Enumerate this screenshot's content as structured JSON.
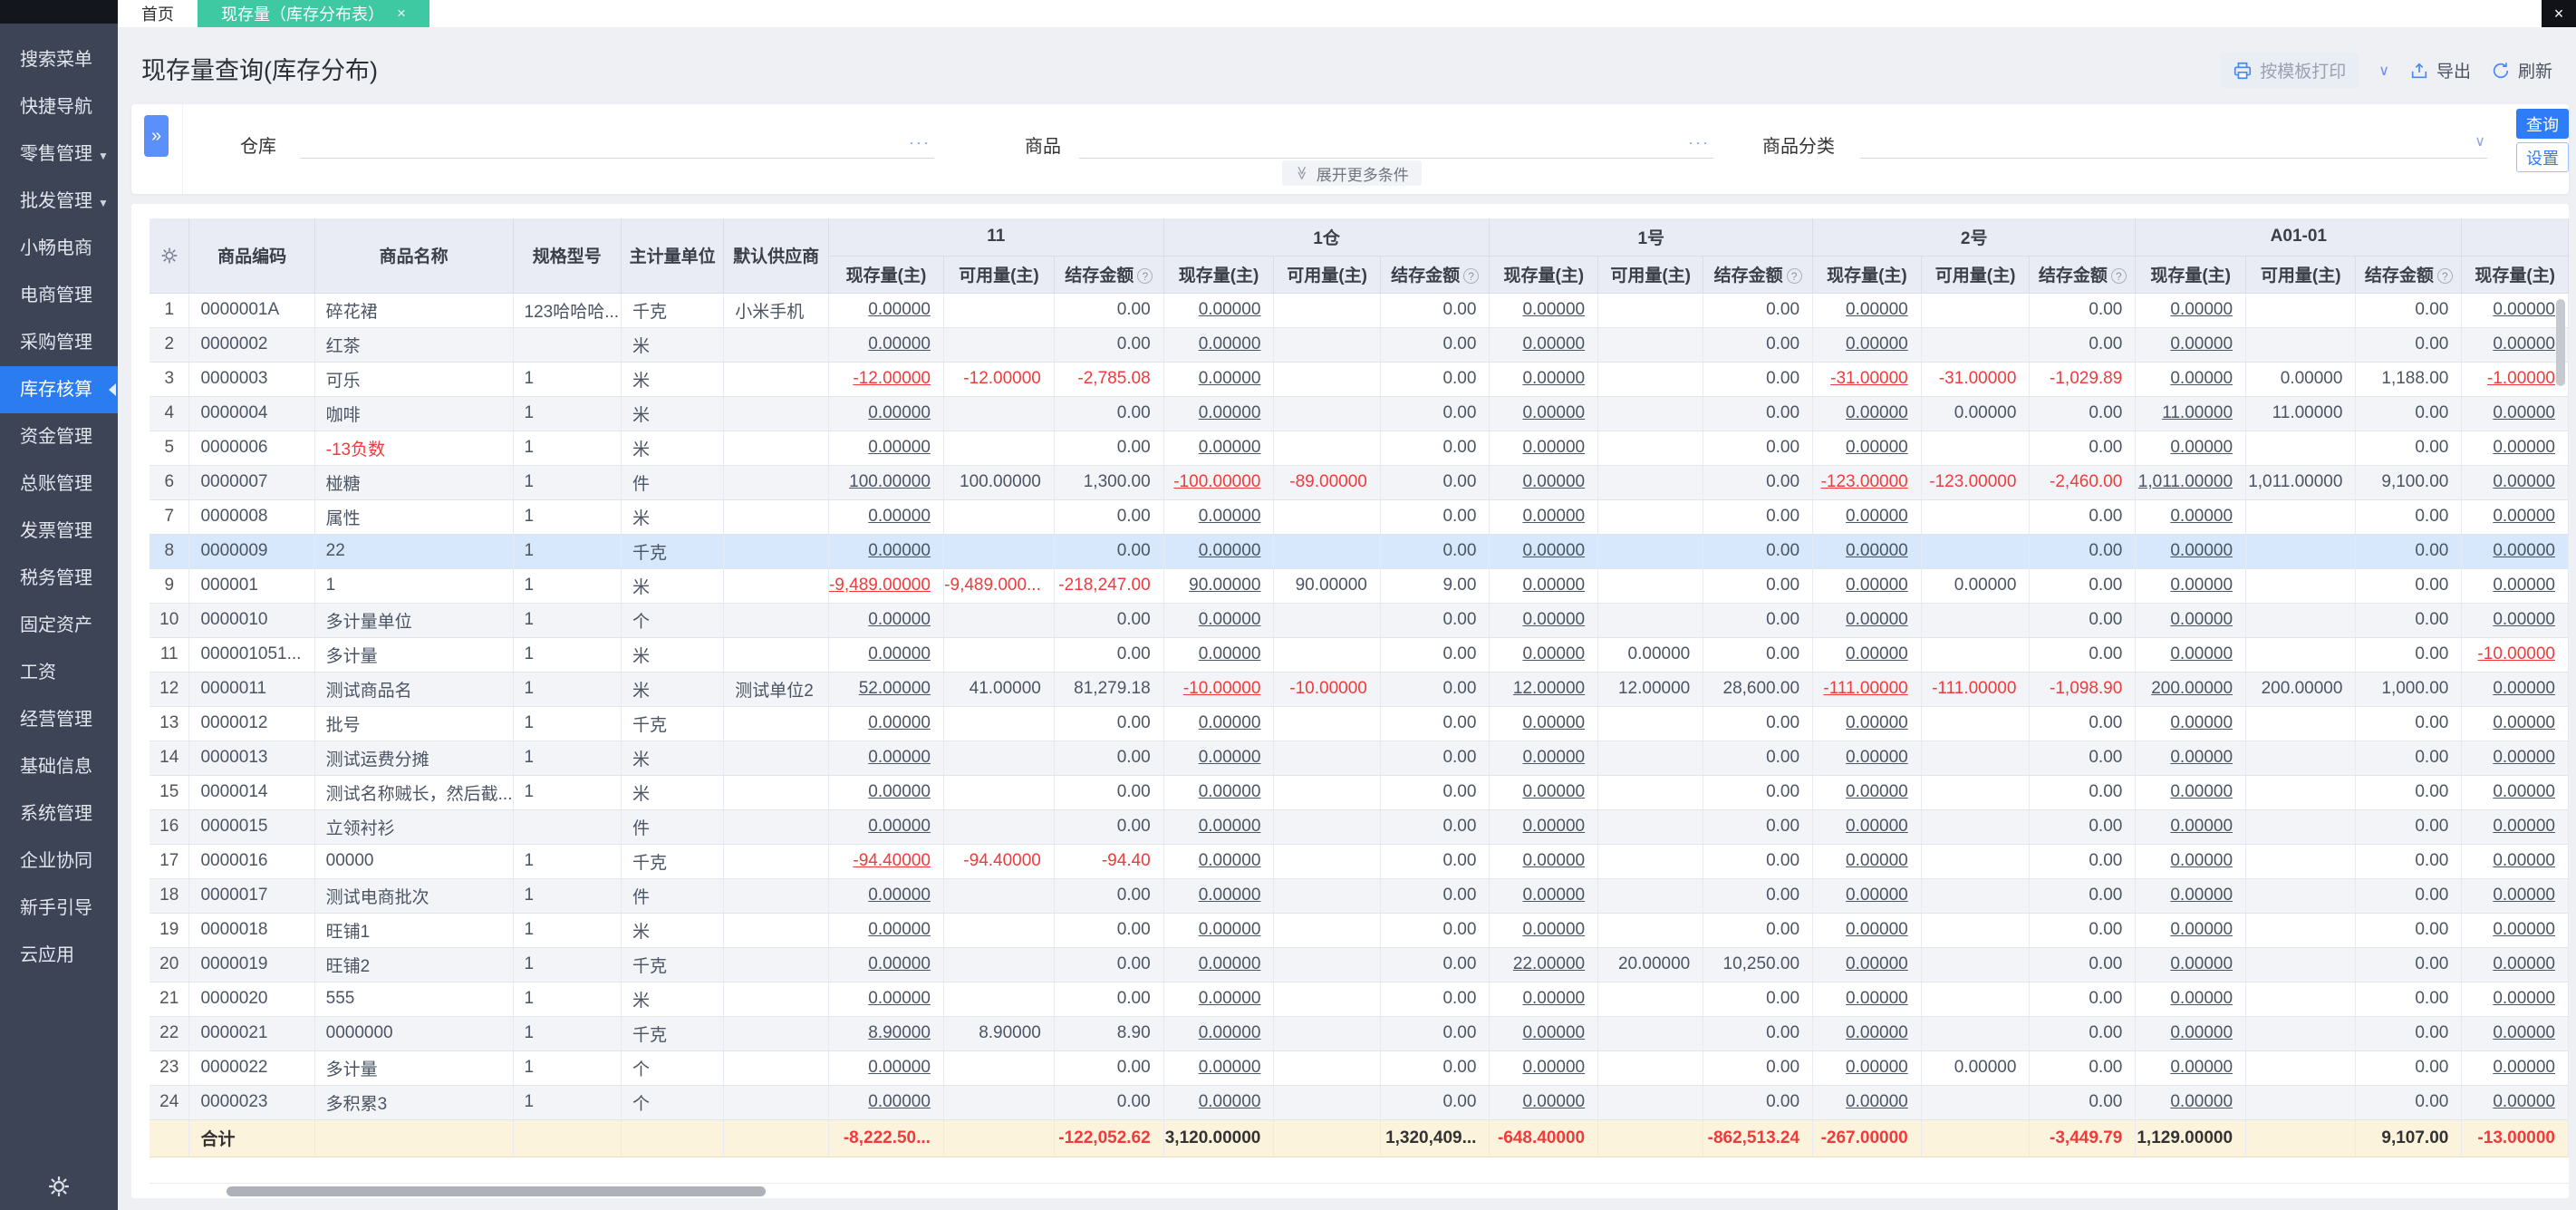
{
  "window": {
    "close_icon": "×"
  },
  "tabs": [
    {
      "label": "首页",
      "active": false,
      "closable": false
    },
    {
      "label": "现存量（库存分布表）",
      "active": true,
      "closable": true
    }
  ],
  "sidebar": {
    "items": [
      {
        "label": "搜索菜单"
      },
      {
        "label": "快捷导航"
      },
      {
        "label": "零售管理",
        "dropdown": true
      },
      {
        "label": "批发管理",
        "dropdown": true
      },
      {
        "label": "小畅电商"
      },
      {
        "label": "电商管理"
      },
      {
        "label": "采购管理"
      },
      {
        "label": "库存核算",
        "active": true
      },
      {
        "label": "资金管理"
      },
      {
        "label": "总账管理"
      },
      {
        "label": "发票管理"
      },
      {
        "label": "税务管理"
      },
      {
        "label": "固定资产"
      },
      {
        "label": "工资"
      },
      {
        "label": "经营管理"
      },
      {
        "label": "基础信息"
      },
      {
        "label": "系统管理"
      },
      {
        "label": "企业协同"
      },
      {
        "label": "新手引导"
      },
      {
        "label": "云应用"
      }
    ]
  },
  "page": {
    "title": "现存量查询(库存分布)"
  },
  "toolbar": {
    "print_label": "按模板打印",
    "export_label": "导出",
    "refresh_label": "刷新"
  },
  "filters": {
    "collapse_icon": "»",
    "warehouse_label": "仓库",
    "product_label": "商品",
    "category_label": "商品分类",
    "ellipsis_icon": "···",
    "chevron_icon": "∨",
    "expand_label": "展开更多条件",
    "search_label": "查询",
    "settings_label": "设置"
  },
  "colors": {
    "accent_blue": "#2e7cf6",
    "tab_green": "#3ec9a2",
    "negative_red": "#f03b3c",
    "sidebar_bg": "#3d4456",
    "selected_row": "#d7e8fc",
    "total_row_bg": "#fcf3dd"
  },
  "table": {
    "fixed_headers": [
      "商品编码",
      "商品名称",
      "规格型号",
      "主计量单位",
      "默认供应商"
    ],
    "group_headers": [
      "11",
      "1仓",
      "1号",
      "2号",
      "A01-01"
    ],
    "sub_headers": [
      "现存量(主)",
      "可用量(主)",
      "结存金额"
    ],
    "extra_sub_header": "现存量(主)",
    "help_icon": "?",
    "total_label": "合计",
    "rows": [
      {
        "code": "0000001A",
        "name": "碎花裙",
        "spec": "123哈哈哈...",
        "unit": "千克",
        "supplier": "小米手机",
        "cells": [
          "0.00000",
          "",
          "0.00",
          "0.00000",
          "",
          "0.00",
          "0.00000",
          "",
          "0.00",
          "0.00000",
          "",
          "0.00",
          "0.00000",
          "",
          "0.00",
          "0.00000"
        ]
      },
      {
        "code": "0000002",
        "name": "红茶",
        "spec": "",
        "unit": "米",
        "supplier": "",
        "cells": [
          "0.00000",
          "",
          "0.00",
          "0.00000",
          "",
          "0.00",
          "0.00000",
          "",
          "0.00",
          "0.00000",
          "",
          "0.00",
          "0.00000",
          "",
          "0.00",
          "0.00000"
        ]
      },
      {
        "code": "0000003",
        "name": "可乐",
        "spec": "1",
        "unit": "米",
        "supplier": "",
        "cells": [
          "-12.00000",
          "-12.00000",
          "-2,785.08",
          "0.00000",
          "",
          "0.00",
          "0.00000",
          "",
          "0.00",
          "-31.00000",
          "-31.00000",
          "-1,029.89",
          "0.00000",
          "0.00000",
          "1,188.00",
          "-1.00000"
        ]
      },
      {
        "code": "0000004",
        "name": "咖啡",
        "spec": "1",
        "unit": "米",
        "supplier": "",
        "cells": [
          "0.00000",
          "",
          "0.00",
          "0.00000",
          "",
          "0.00",
          "0.00000",
          "",
          "0.00",
          "0.00000",
          "0.00000",
          "0.00",
          "11.00000",
          "11.00000",
          "0.00",
          "0.00000"
        ]
      },
      {
        "code": "0000006",
        "name": "-13负数",
        "name_red": true,
        "spec": "1",
        "unit": "米",
        "supplier": "",
        "cells": [
          "0.00000",
          "",
          "0.00",
          "0.00000",
          "",
          "0.00",
          "0.00000",
          "",
          "0.00",
          "0.00000",
          "",
          "0.00",
          "0.00000",
          "",
          "0.00",
          "0.00000"
        ]
      },
      {
        "code": "0000007",
        "name": "椪糖",
        "spec": "1",
        "unit": "件",
        "supplier": "",
        "cells": [
          "100.00000",
          "100.00000",
          "1,300.00",
          "-100.00000",
          "-89.00000",
          "0.00",
          "0.00000",
          "",
          "0.00",
          "-123.00000",
          "-123.00000",
          "-2,460.00",
          "1,011.00000",
          "1,011.00000",
          "9,100.00",
          "0.00000"
        ]
      },
      {
        "code": "0000008",
        "name": "属性",
        "spec": "1",
        "unit": "米",
        "supplier": "",
        "cells": [
          "0.00000",
          "",
          "0.00",
          "0.00000",
          "",
          "0.00",
          "0.00000",
          "",
          "0.00",
          "0.00000",
          "",
          "0.00",
          "0.00000",
          "",
          "0.00",
          "0.00000"
        ]
      },
      {
        "code": "0000009",
        "name": "22",
        "spec": "1",
        "unit": "千克",
        "supplier": "",
        "selected": true,
        "cells": [
          "0.00000",
          "",
          "0.00",
          "0.00000",
          "",
          "0.00",
          "0.00000",
          "",
          "0.00",
          "0.00000",
          "",
          "0.00",
          "0.00000",
          "",
          "0.00",
          "0.00000"
        ]
      },
      {
        "code": "000001",
        "name": "1",
        "spec": "1",
        "unit": "米",
        "supplier": "",
        "cells": [
          "-9,489.00000",
          "-9,489.000...",
          "-218,247.00",
          "90.00000",
          "90.00000",
          "9.00",
          "0.00000",
          "",
          "0.00",
          "0.00000",
          "0.00000",
          "0.00",
          "0.00000",
          "",
          "0.00",
          "0.00000"
        ]
      },
      {
        "code": "0000010",
        "name": "多计量单位",
        "spec": "1",
        "unit": "个",
        "supplier": "",
        "cells": [
          "0.00000",
          "",
          "0.00",
          "0.00000",
          "",
          "0.00",
          "0.00000",
          "",
          "0.00",
          "0.00000",
          "",
          "0.00",
          "0.00000",
          "",
          "0.00",
          "0.00000"
        ]
      },
      {
        "code": "000001051...",
        "name": "多计量",
        "spec": "1",
        "unit": "米",
        "supplier": "",
        "cells": [
          "0.00000",
          "",
          "0.00",
          "0.00000",
          "",
          "0.00",
          "0.00000",
          "0.00000",
          "0.00",
          "0.00000",
          "",
          "0.00",
          "0.00000",
          "",
          "0.00",
          "-10.00000"
        ]
      },
      {
        "code": "0000011",
        "name": "测试商品名",
        "spec": "1",
        "unit": "米",
        "supplier": "测试单位2",
        "cells": [
          "52.00000",
          "41.00000",
          "81,279.18",
          "-10.00000",
          "-10.00000",
          "0.00",
          "12.00000",
          "12.00000",
          "28,600.00",
          "-111.00000",
          "-111.00000",
          "-1,098.90",
          "200.00000",
          "200.00000",
          "1,000.00",
          "0.00000"
        ]
      },
      {
        "code": "0000012",
        "name": "批号",
        "spec": "1",
        "unit": "千克",
        "supplier": "",
        "cells": [
          "0.00000",
          "",
          "0.00",
          "0.00000",
          "",
          "0.00",
          "0.00000",
          "",
          "0.00",
          "0.00000",
          "",
          "0.00",
          "0.00000",
          "",
          "0.00",
          "0.00000"
        ]
      },
      {
        "code": "0000013",
        "name": "测试运费分摊",
        "spec": "1",
        "unit": "米",
        "supplier": "",
        "cells": [
          "0.00000",
          "",
          "0.00",
          "0.00000",
          "",
          "0.00",
          "0.00000",
          "",
          "0.00",
          "0.00000",
          "",
          "0.00",
          "0.00000",
          "",
          "0.00",
          "0.00000"
        ]
      },
      {
        "code": "0000014",
        "name": "测试名称贼长，然后截...",
        "spec": "1",
        "unit": "米",
        "supplier": "",
        "cells": [
          "0.00000",
          "",
          "0.00",
          "0.00000",
          "",
          "0.00",
          "0.00000",
          "",
          "0.00",
          "0.00000",
          "",
          "0.00",
          "0.00000",
          "",
          "0.00",
          "0.00000"
        ]
      },
      {
        "code": "0000015",
        "name": "立领衬衫",
        "spec": "",
        "unit": "件",
        "supplier": "",
        "cells": [
          "0.00000",
          "",
          "0.00",
          "0.00000",
          "",
          "0.00",
          "0.00000",
          "",
          "0.00",
          "0.00000",
          "",
          "0.00",
          "0.00000",
          "",
          "0.00",
          "0.00000"
        ]
      },
      {
        "code": "0000016",
        "name": "00000",
        "spec": "1",
        "unit": "千克",
        "supplier": "",
        "cells": [
          "-94.40000",
          "-94.40000",
          "-94.40",
          "0.00000",
          "",
          "0.00",
          "0.00000",
          "",
          "0.00",
          "0.00000",
          "",
          "0.00",
          "0.00000",
          "",
          "0.00",
          "0.00000"
        ]
      },
      {
        "code": "0000017",
        "name": "测试电商批次",
        "spec": "1",
        "unit": "件",
        "supplier": "",
        "cells": [
          "0.00000",
          "",
          "0.00",
          "0.00000",
          "",
          "0.00",
          "0.00000",
          "",
          "0.00",
          "0.00000",
          "",
          "0.00",
          "0.00000",
          "",
          "0.00",
          "0.00000"
        ]
      },
      {
        "code": "0000018",
        "name": "旺铺1",
        "spec": "1",
        "unit": "米",
        "supplier": "",
        "cells": [
          "0.00000",
          "",
          "0.00",
          "0.00000",
          "",
          "0.00",
          "0.00000",
          "",
          "0.00",
          "0.00000",
          "",
          "0.00",
          "0.00000",
          "",
          "0.00",
          "0.00000"
        ]
      },
      {
        "code": "0000019",
        "name": "旺铺2",
        "spec": "1",
        "unit": "千克",
        "supplier": "",
        "cells": [
          "0.00000",
          "",
          "0.00",
          "0.00000",
          "",
          "0.00",
          "22.00000",
          "20.00000",
          "10,250.00",
          "0.00000",
          "",
          "0.00",
          "0.00000",
          "",
          "0.00",
          "0.00000"
        ]
      },
      {
        "code": "0000020",
        "name": "555",
        "spec": "1",
        "unit": "米",
        "supplier": "",
        "cells": [
          "0.00000",
          "",
          "0.00",
          "0.00000",
          "",
          "0.00",
          "0.00000",
          "",
          "0.00",
          "0.00000",
          "",
          "0.00",
          "0.00000",
          "",
          "0.00",
          "0.00000"
        ]
      },
      {
        "code": "0000021",
        "name": "0000000",
        "spec": "1",
        "unit": "千克",
        "supplier": "",
        "cells": [
          "8.90000",
          "8.90000",
          "8.90",
          "0.00000",
          "",
          "0.00",
          "0.00000",
          "",
          "0.00",
          "0.00000",
          "",
          "0.00",
          "0.00000",
          "",
          "0.00",
          "0.00000"
        ]
      },
      {
        "code": "0000022",
        "name": "多计量",
        "spec": "1",
        "unit": "个",
        "supplier": "",
        "cells": [
          "0.00000",
          "",
          "0.00",
          "0.00000",
          "",
          "0.00",
          "0.00000",
          "",
          "0.00",
          "0.00000",
          "0.00000",
          "0.00",
          "0.00000",
          "",
          "0.00",
          "0.00000"
        ]
      },
      {
        "code": "0000023",
        "name": "多积累3",
        "spec": "1",
        "unit": "个",
        "supplier": "",
        "cells": [
          "0.00000",
          "",
          "0.00",
          "0.00000",
          "",
          "0.00",
          "0.00000",
          "",
          "0.00",
          "0.00000",
          "",
          "0.00",
          "0.00000",
          "",
          "0.00",
          "0.00000"
        ]
      }
    ],
    "total_cells": [
      "-8,222.50...",
      "",
      "-122,052.62",
      "3,120.00000",
      "",
      "1,320,409...",
      "-648.40000",
      "",
      "-862,513.24",
      "-267.00000",
      "",
      "-3,449.79",
      "1,129.00000",
      "",
      "9,107.00",
      "-13.00000"
    ]
  }
}
